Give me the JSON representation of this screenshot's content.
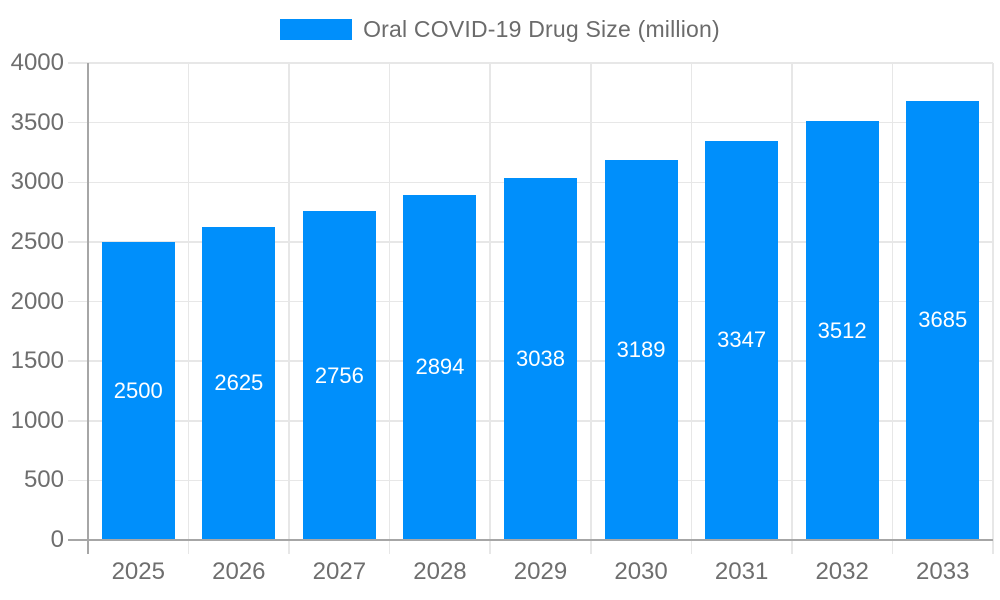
{
  "legend": {
    "label": "Oral COVID-19 Drug Size (million)"
  },
  "colors": {
    "bar": "#008FFB",
    "grid": "#e7e7e7",
    "axis": "#a6a6a6",
    "tick_text": "#6e6e6e",
    "legend_text": "#6b6b6b",
    "value_text": "#ffffff"
  },
  "chart_data": {
    "type": "bar",
    "title": "Oral COVID-19 Drug Size (million)",
    "categories": [
      "2025",
      "2026",
      "2027",
      "2028",
      "2029",
      "2030",
      "2031",
      "2032",
      "2033"
    ],
    "values": [
      2500,
      2625,
      2756,
      2894,
      3038,
      3189,
      3347,
      3512,
      3685
    ],
    "xlabel": "",
    "ylabel": "",
    "ylim": [
      0,
      4000
    ],
    "yticks": [
      0,
      500,
      1000,
      1500,
      2000,
      2500,
      3000,
      3500,
      4000
    ],
    "grid": true,
    "legend_position": "top",
    "value_label_position": "inside-center"
  }
}
